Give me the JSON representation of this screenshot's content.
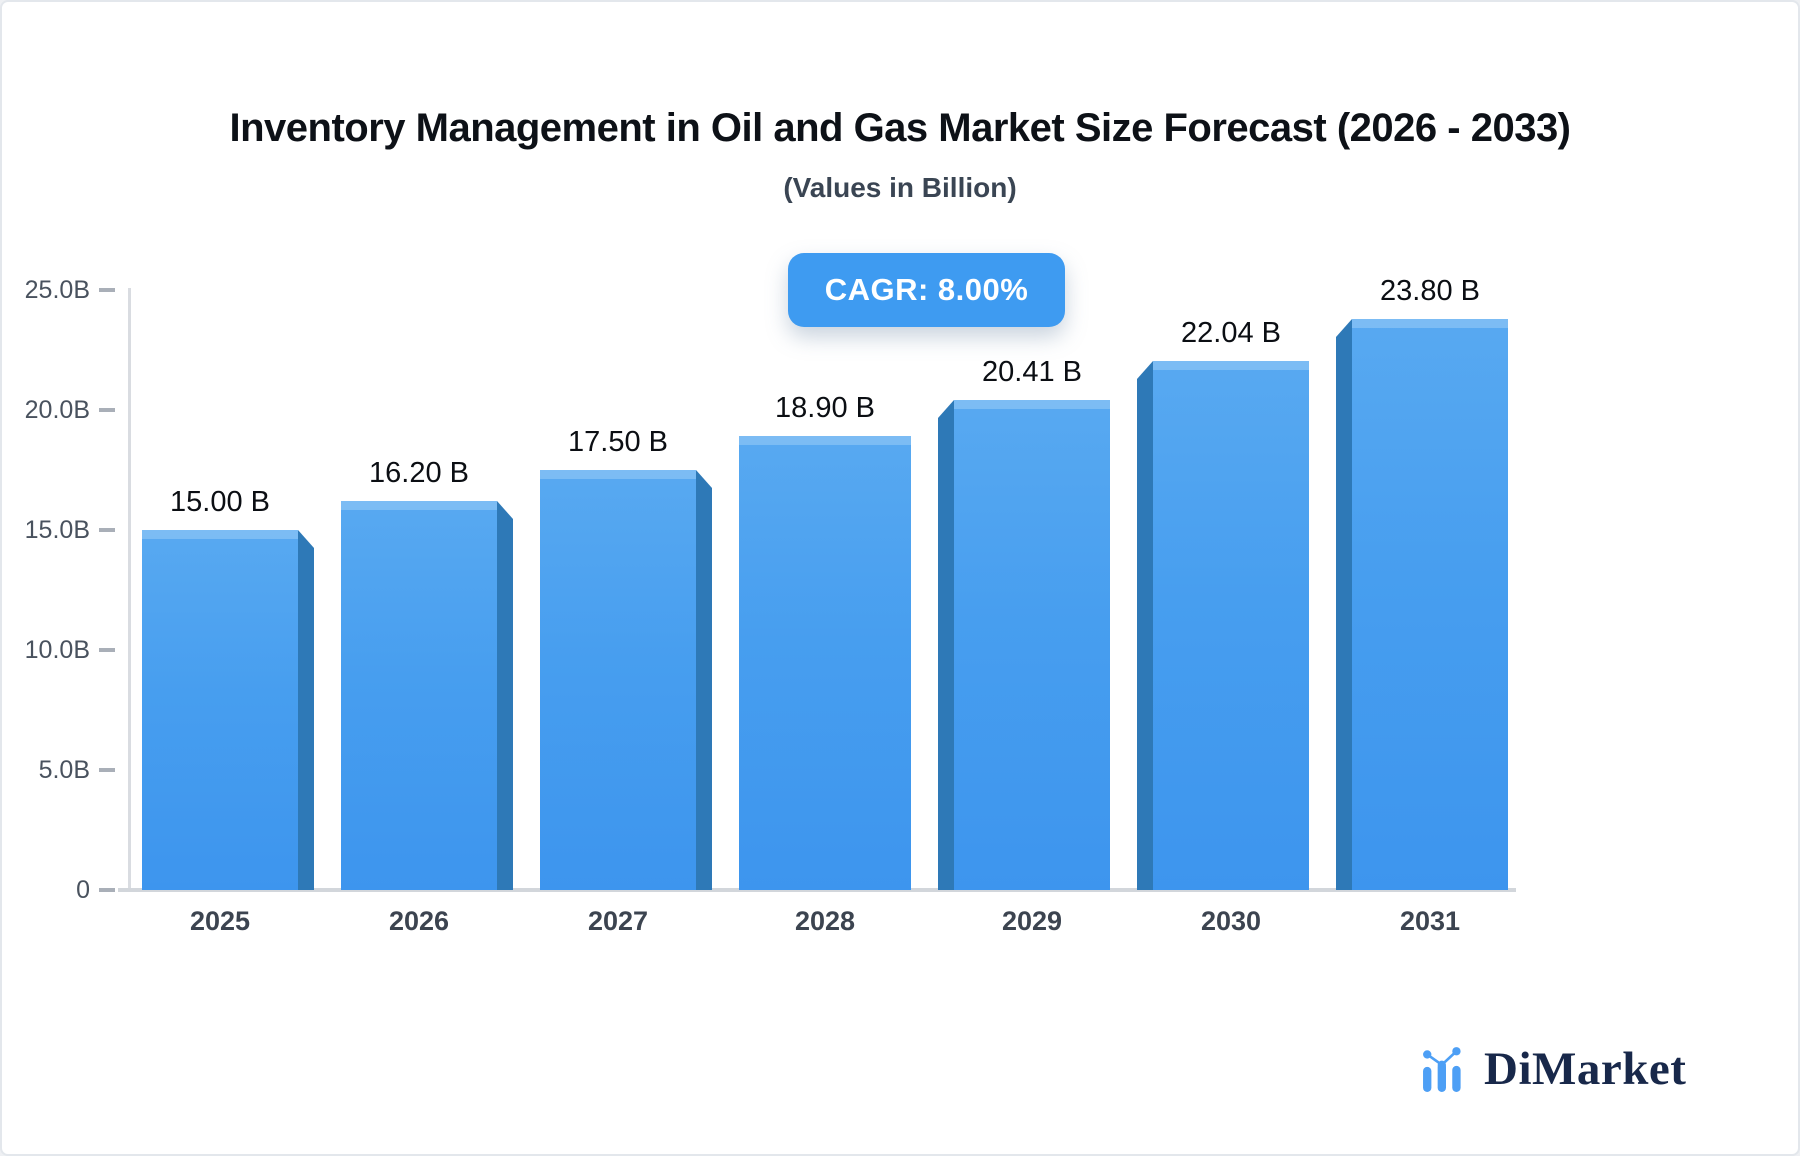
{
  "header": {
    "title": "Inventory Management in Oil and Gas Market Size Forecast (2026 - 2033)",
    "subtitle": "(Values in Billion)"
  },
  "badge": {
    "label": "CAGR: 8.00%",
    "background": "#3e9bf1",
    "text_color": "#ffffff"
  },
  "chart_data": {
    "type": "bar",
    "title": "Inventory Management in Oil and Gas Market Size Forecast (2026 - 2033)",
    "subtitle": "(Values in Billion)",
    "categories": [
      "2025",
      "2026",
      "2027",
      "2028",
      "2029",
      "2030",
      "2031"
    ],
    "values": [
      15.0,
      16.2,
      17.5,
      18.9,
      20.41,
      22.04,
      23.8
    ],
    "bar_labels": [
      "15.00 B",
      "16.20 B",
      "17.50 B",
      "18.90 B",
      "20.41 B",
      "22.04 B",
      "23.80 B"
    ],
    "xlabel": "",
    "ylabel": "",
    "ylim": [
      0,
      25
    ],
    "grid": false,
    "legend": "none",
    "yticks": [
      {
        "label": "25.0B",
        "value": 25
      },
      {
        "label": "20.0B",
        "value": 20
      },
      {
        "label": "15.0B",
        "value": 15
      },
      {
        "label": "10.0B",
        "value": 10
      },
      {
        "label": "5.0B",
        "value": 5
      },
      {
        "label": "0",
        "value": 0
      }
    ],
    "colors": {
      "bar_face_top": "#58a9f1",
      "bar_face_bottom": "#3d95ee",
      "bar_side": "#2e79b7",
      "axis_line": "#d9dce1",
      "tick": "#a9afb8",
      "axis_label": "#49525e",
      "category_label": "#3c4450",
      "value_label": "#0b0e13"
    }
  },
  "logo": {
    "text": "DiMarket",
    "icon": "mini-bar-chart-icon",
    "text_color": "#18284a",
    "accent": "#4d9ff5"
  }
}
